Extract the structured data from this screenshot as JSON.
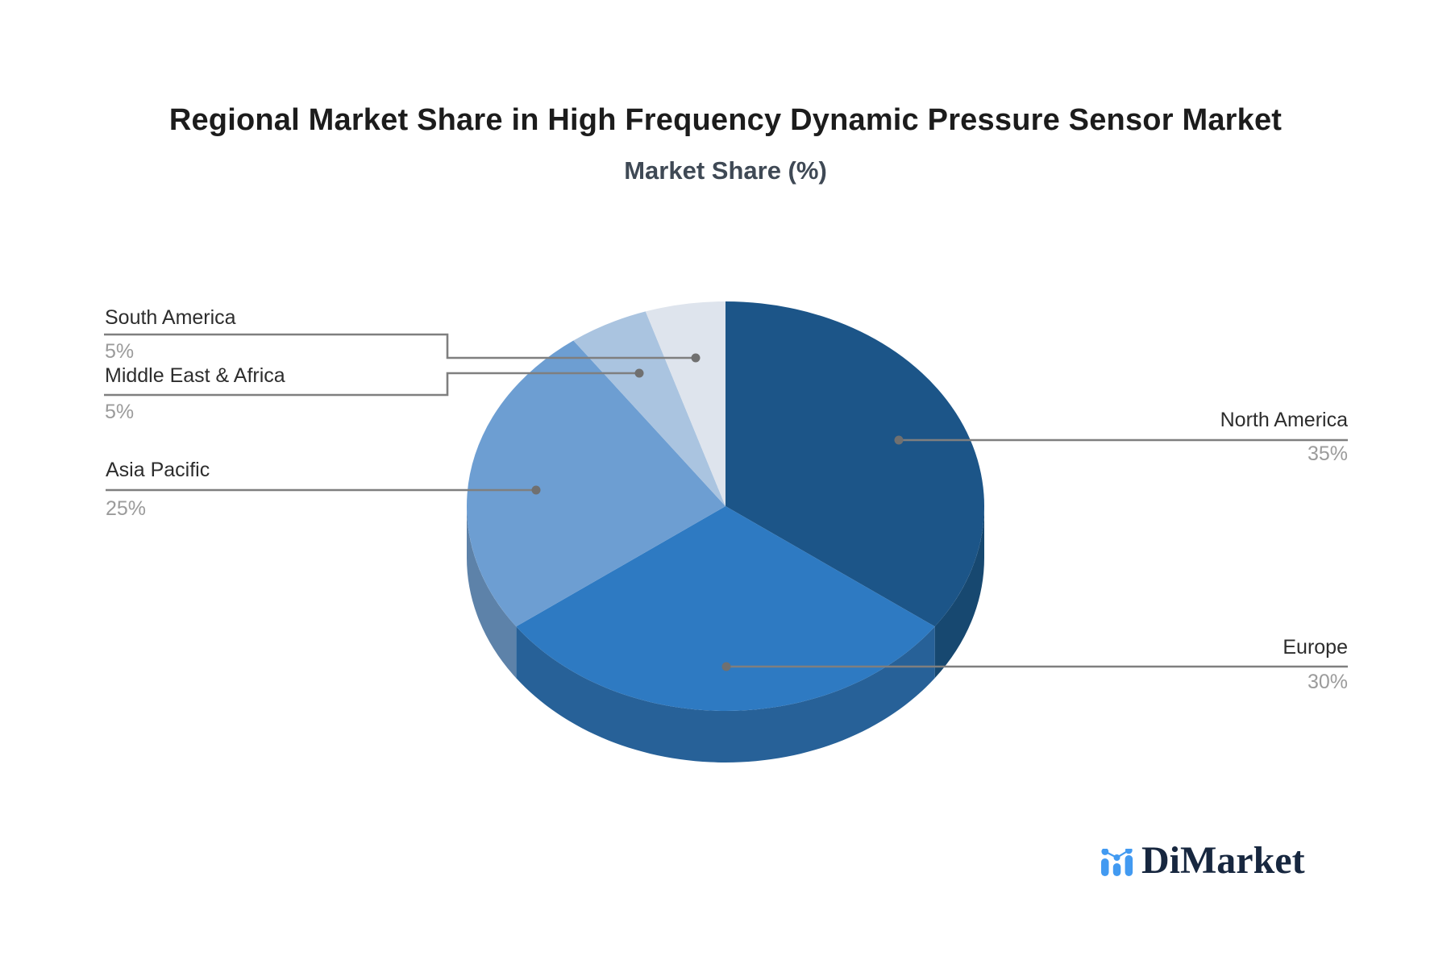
{
  "chart_data": {
    "type": "pie",
    "title": "Regional Market Share in High Frequency Dynamic Pressure Sensor Market",
    "subtitle": "Market Share (%)",
    "unit": "%",
    "style": "3d",
    "start_angle_deg": 0,
    "direction": "clockwise",
    "legend_position": "none",
    "label_style": "outside-with-leader-lines",
    "slices": [
      {
        "label": "North America",
        "value": 35,
        "pct_label": "35%",
        "color": "#1c5588",
        "side_color": "#174870"
      },
      {
        "label": "Europe",
        "value": 30,
        "pct_label": "30%",
        "color": "#2e7ac2",
        "side_color": "#276198"
      },
      {
        "label": "Asia Pacific",
        "value": 25,
        "pct_label": "25%",
        "color": "#6d9ed2",
        "side_color": "#5d82a9"
      },
      {
        "label": "Middle East & Africa",
        "value": 5,
        "pct_label": "5%",
        "color": "#aac4e0",
        "side_color": "#8fa9c6"
      },
      {
        "label": "South America",
        "value": 5,
        "pct_label": "5%",
        "color": "#dee4ed",
        "side_color": "#bdc6d3"
      }
    ],
    "colors": {
      "title_text": "#1c1c1c",
      "subtitle_text": "#3f4955",
      "label_text": "#2d2d2d",
      "pct_text": "#9b9b9b",
      "leader_line": "#7f7f7f",
      "leader_dot": "#707070"
    }
  },
  "logo": {
    "brand": "DiMarket",
    "icon": "bar-chart-with-trendline-icon",
    "icon_color": "#429af1",
    "text_color": "#17273f"
  }
}
